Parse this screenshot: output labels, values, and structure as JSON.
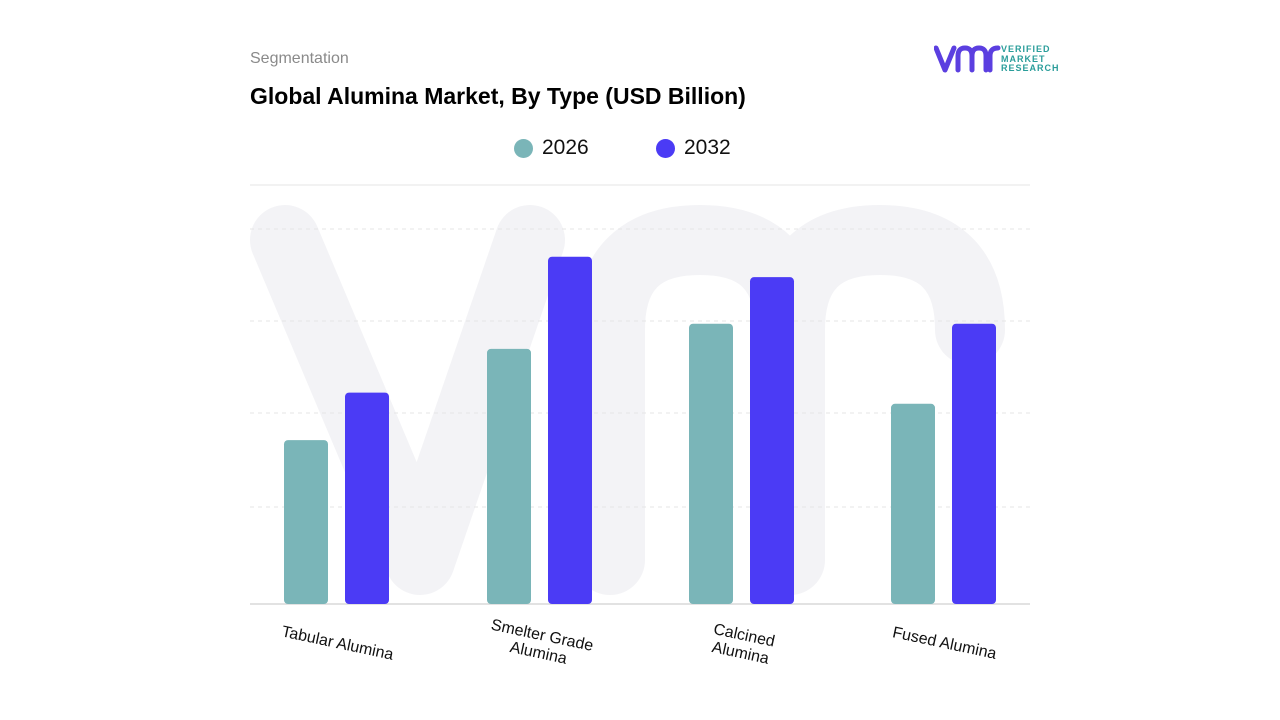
{
  "header": {
    "subtitle": "Segmentation",
    "title": "Global Alumina Market, By Type (USD Billion)"
  },
  "logo": {
    "lines": [
      "VERIFIED",
      "MARKET",
      "RESEARCH"
    ],
    "brand_color": "#5b3fe0",
    "text_color": "#2a9d9a"
  },
  "colors": {
    "series_2026": "#7ab5b8",
    "series_2032": "#4b3bf5",
    "grid": "#e6e6e6"
  },
  "chart_data": {
    "type": "bar",
    "title": "Global Alumina Market, By Type (USD Billion)",
    "categories": [
      "Tabular Alumina",
      "Smelter Grade Alumina",
      "Calcined Alumina",
      "Fused Alumina"
    ],
    "category_label_lines": [
      [
        "Tabular Alumina"
      ],
      [
        "Smelter Grade",
        "Alumina"
      ],
      [
        "Calcined",
        "Alumina"
      ],
      [
        "Fused Alumina"
      ]
    ],
    "series": [
      {
        "name": "2026",
        "values": [
          1.76,
          2.74,
          3.01,
          2.15
        ]
      },
      {
        "name": "2032",
        "values": [
          2.27,
          3.73,
          3.51,
          3.01
        ]
      }
    ],
    "ylim": [
      0,
      4.5
    ],
    "grid": true,
    "legend_position": "top-center"
  }
}
